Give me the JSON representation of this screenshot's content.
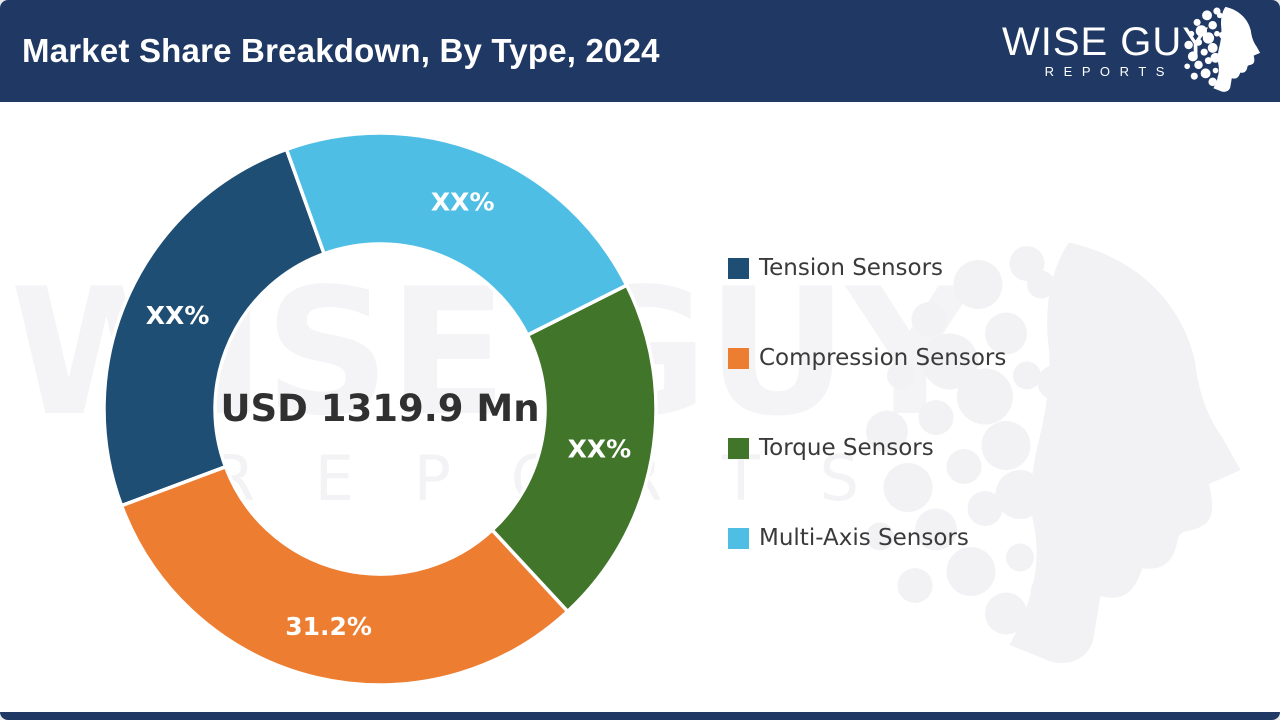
{
  "header": {
    "title": "Market Share Breakdown, By Type, 2024",
    "logo": {
      "line1": "WISE GUY",
      "line2": "R E P O R T S"
    }
  },
  "watermark": {
    "line1": "WISE GUY",
    "line2": "R E P O R T S"
  },
  "chart_data": {
    "type": "donut",
    "title": "Market Share Breakdown, By Type, 2024",
    "center_label": "USD 1319.9 Mn",
    "start_angle_deg": 109.8,
    "direction": "counterclockwise",
    "segments": [
      {
        "name": "Tension Sensors",
        "value_pct": 25.2,
        "label": "XX%",
        "color": "#1F4E74"
      },
      {
        "name": "Compression Sensors",
        "value_pct": 31.2,
        "label": "31.2%",
        "color": "#ED7D31"
      },
      {
        "name": "Torque Sensors",
        "value_pct": 20.5,
        "label": "XX%",
        "color": "#41752A"
      },
      {
        "name": "Multi-Axis Sensors",
        "value_pct": 23.1,
        "label": "XX%",
        "color": "#4FBEE5"
      }
    ]
  },
  "legend": {
    "items": [
      {
        "label": "Tension Sensors",
        "color": "#1F4E74"
      },
      {
        "label": "Compression Sensors",
        "color": "#ED7D31"
      },
      {
        "label": "Torque Sensors",
        "color": "#41752A"
      },
      {
        "label": "Multi-Axis Sensors",
        "color": "#4FBEE5"
      }
    ]
  },
  "colors": {
    "header_bg": "#1F3864",
    "footer_bg": "#1F3864",
    "watermark": "#F2F2F4",
    "center_text": "#303030",
    "legend_text": "#3A3A3A"
  }
}
